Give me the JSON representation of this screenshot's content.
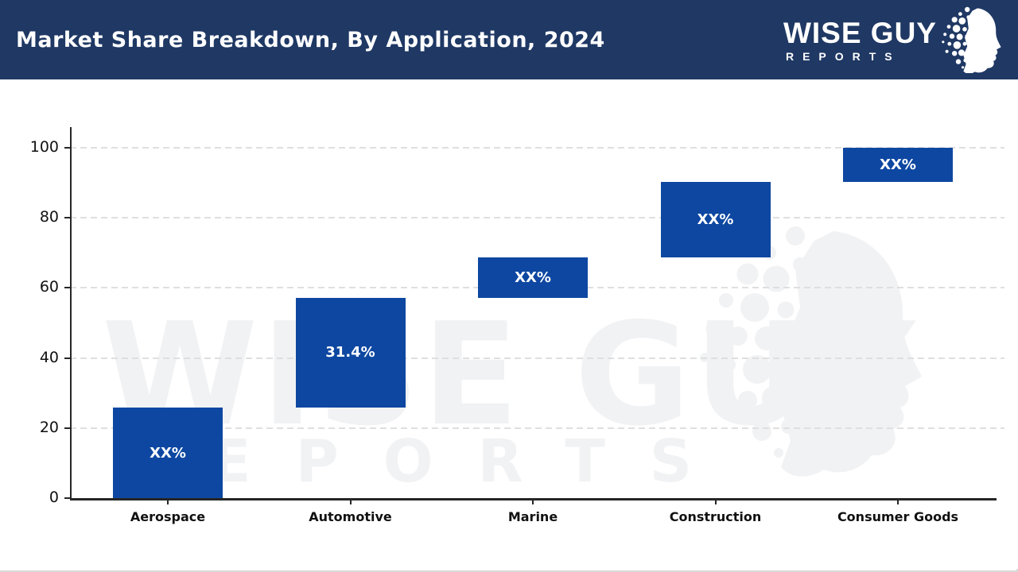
{
  "header": {
    "title": "Market Share Breakdown, By Application, 2024",
    "background": "#1f3864"
  },
  "logo": {
    "line1": "WISE GUY",
    "line2": "REPORTS"
  },
  "watermark": {
    "line1": "WISE GUY",
    "line2": "REPORTS"
  },
  "colors": {
    "header_bg": "#1f3864",
    "bar_blue": "#0d47a1",
    "bar_label_text": "#ffffff",
    "grid": "#dfdfdf",
    "axis": "#262626",
    "watermark": "#f1f2f4"
  },
  "chart_data": {
    "type": "bar",
    "subtype": "floating-waterfall",
    "title": "Market Share Breakdown, By Application, 2024",
    "xlabel": "",
    "ylabel": "",
    "categories": [
      "Aerospace",
      "Automotive",
      "Marine",
      "Construction",
      "Consumer Goods"
    ],
    "segments": [
      {
        "category": "Aerospace",
        "start": 0,
        "end": 25.8,
        "value_est": 25.8,
        "label": "XX%"
      },
      {
        "category": "Automotive",
        "start": 25.8,
        "end": 57.2,
        "value_est": 31.4,
        "label": "31.4%"
      },
      {
        "category": "Marine",
        "start": 57.2,
        "end": 68.6,
        "value_est": 11.4,
        "label": "XX%"
      },
      {
        "category": "Construction",
        "start": 68.6,
        "end": 90.3,
        "value_est": 21.7,
        "label": "XX%"
      },
      {
        "category": "Consumer Goods",
        "start": 90.3,
        "end": 100,
        "value_est": 9.7,
        "label": "XX%"
      }
    ],
    "yticks": [
      0,
      20,
      40,
      60,
      80,
      100
    ],
    "ylim": [
      0,
      105
    ],
    "grid": "horizontal-dashed",
    "legend": "none",
    "bar_color": "#0d47a1"
  }
}
